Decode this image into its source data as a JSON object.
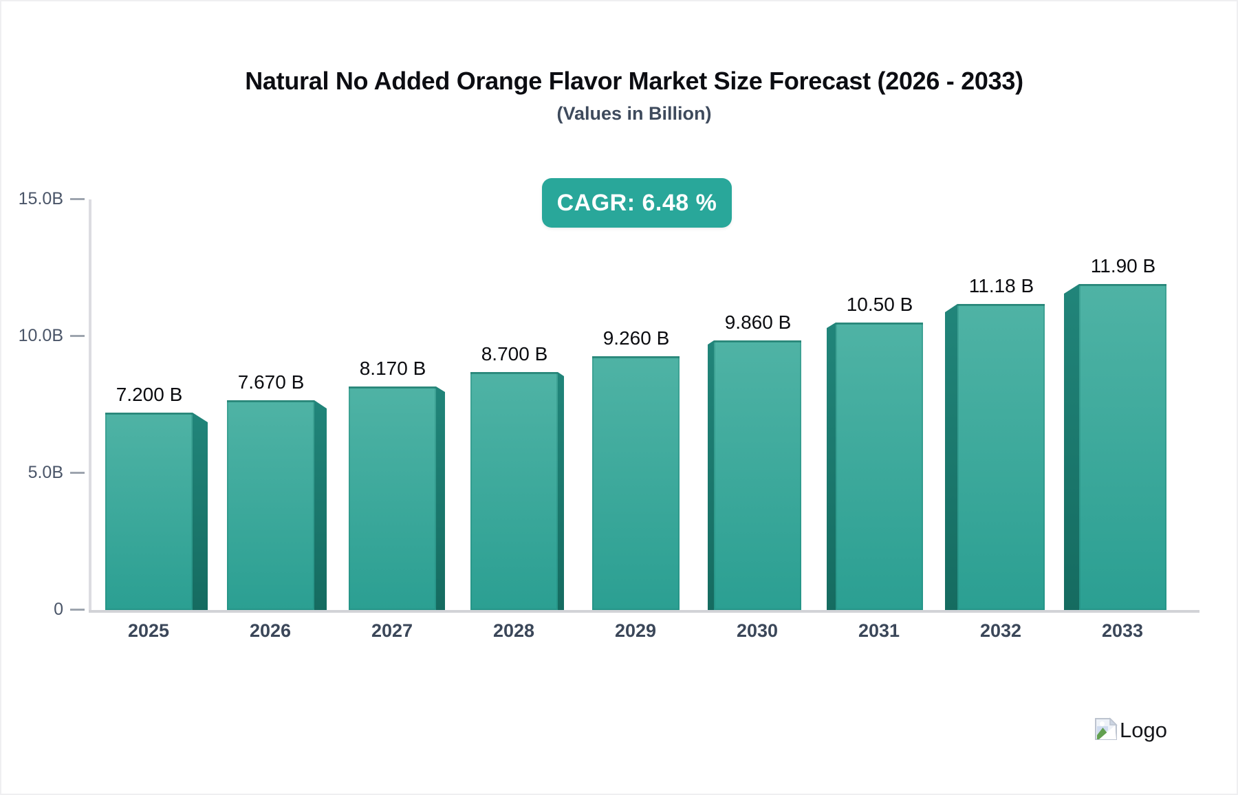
{
  "watermark": {
    "label": "Logo"
  },
  "chart_data": {
    "type": "bar",
    "title": "Natural No Added Orange Flavor Market Size Forecast (2026 - 2033)",
    "subtitle": "(Values in Billion)",
    "cagr_label": "CAGR: 6.48 %",
    "categories": [
      "2025",
      "2026",
      "2027",
      "2028",
      "2029",
      "2030",
      "2031",
      "2032",
      "2033"
    ],
    "values": [
      7.2,
      7.67,
      8.17,
      8.7,
      9.26,
      9.86,
      10.5,
      11.18,
      11.9
    ],
    "bar_labels": [
      "7.200 B",
      "7.670 B",
      "8.170 B",
      "8.700 B",
      "9.260 B",
      "9.860 B",
      "10.50 B",
      "11.18 B",
      "11.90 B"
    ],
    "unit": "Billion",
    "xlabel": "",
    "ylabel": "",
    "ylim": [
      0,
      15
    ],
    "y_ticks": [
      {
        "label": "15.0B",
        "value": 15
      },
      {
        "label": "10.0B",
        "value": 10
      },
      {
        "label": "5.0B",
        "value": 5
      },
      {
        "label": "0",
        "value": 0
      }
    ],
    "grid": false,
    "legend": false,
    "colors": {
      "bar_top": "#4fb3a5",
      "bar_bottom": "#2b9f92",
      "bar_side": "#1f8073",
      "badge_background": "#29a79a",
      "axis_line": "#d2d3d7",
      "tick_text": "#4a5568",
      "category_text": "#3b4759",
      "value_text": "#0b0c10"
    }
  }
}
